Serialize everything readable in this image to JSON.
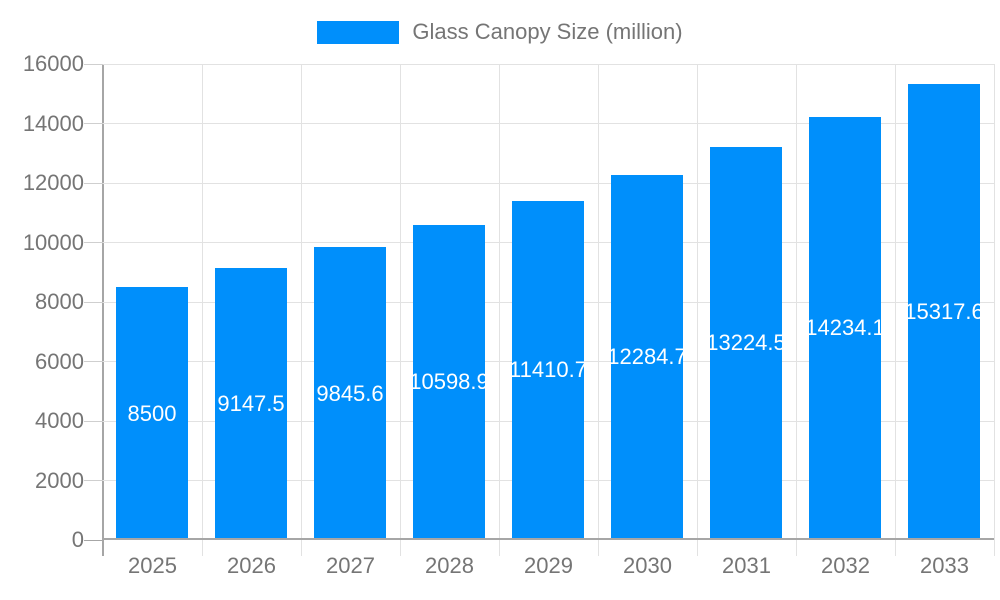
{
  "legend": {
    "label": "Glass Canopy Size (million)"
  },
  "colors": {
    "bar": "#008FFB",
    "grid": "#e2e2e2",
    "axis": "#a6a6a6",
    "tick": "#cfcfcf",
    "text": "#757575",
    "bar_label": "#ffffff",
    "background": "#ffffff"
  },
  "chart_data": {
    "type": "bar",
    "title": "Glass Canopy Size (million)",
    "categories": [
      "2025",
      "2026",
      "2027",
      "2028",
      "2029",
      "2030",
      "2031",
      "2032",
      "2033"
    ],
    "series": [
      {
        "name": "Glass Canopy Size (million)",
        "values": [
          8500,
          9147.5,
          9845.6,
          10598.9,
          11410.7,
          12284.7,
          13224.5,
          14234.1,
          15317.6
        ]
      }
    ],
    "value_labels": [
      "8500",
      "9147.5",
      "9845.6",
      "10598.9",
      "11410.7",
      "12284.7",
      "13224.5",
      "14234.1",
      "15317.6"
    ],
    "xlabel": "",
    "ylabel": "",
    "ylim": [
      0,
      16000
    ],
    "yticks": [
      0,
      2000,
      4000,
      6000,
      8000,
      10000,
      12000,
      14000,
      16000
    ],
    "ytick_labels": [
      "0",
      "2000",
      "4000",
      "6000",
      "8000",
      "10000",
      "12000",
      "14000",
      "16000"
    ],
    "grid": "on",
    "legend_position": "top"
  }
}
